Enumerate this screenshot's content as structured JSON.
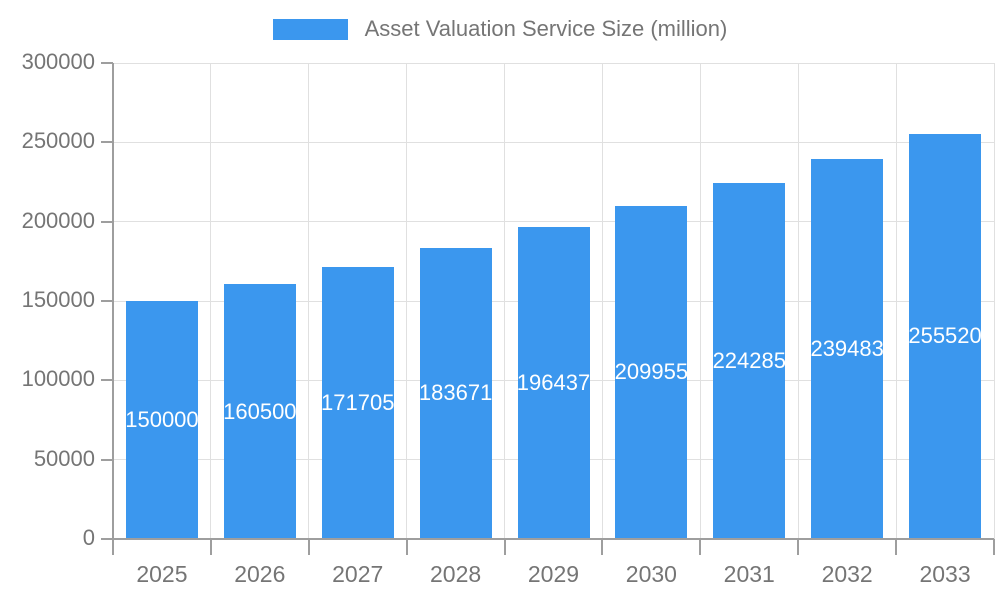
{
  "chart_data": {
    "type": "bar",
    "title": "Asset Valuation Service Size (million)",
    "categories": [
      "2025",
      "2026",
      "2027",
      "2028",
      "2029",
      "2030",
      "2031",
      "2032",
      "2033"
    ],
    "values": [
      150000,
      160500,
      171705,
      183671,
      196437,
      209955,
      224285,
      239483,
      255520
    ],
    "value_labels": [
      "150000",
      "160500",
      "171705",
      "183671",
      "196437",
      "209955",
      "224285",
      "239483",
      "255520"
    ],
    "xlabel": "",
    "ylabel": "",
    "ylim": [
      0,
      300000
    ],
    "yticks": [
      0,
      50000,
      100000,
      150000,
      200000,
      250000,
      300000
    ],
    "ytick_labels": [
      "0",
      "50000",
      "100000",
      "150000",
      "200000",
      "250000",
      "300000"
    ],
    "grid": true,
    "legend_position": "top",
    "value_labels_shown": true,
    "colors": {
      "bar": "#3b97ee",
      "grid": "#e0e0e0",
      "axis": "#9e9e9e",
      "tick_text": "#757575",
      "value_text": "#ffffff",
      "background": "#ffffff"
    }
  }
}
